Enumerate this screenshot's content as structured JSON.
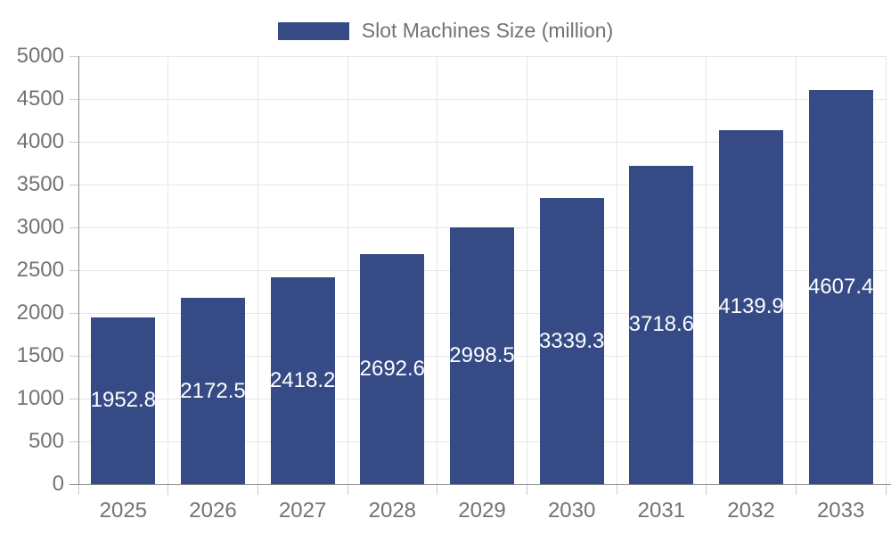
{
  "legend": {
    "label": "Slot Machines Size (million)"
  },
  "chart_data": {
    "type": "bar",
    "title": "Slot Machines Size (million)",
    "series_name": "Slot Machines Size (million)",
    "categories": [
      "2025",
      "2026",
      "2027",
      "2028",
      "2029",
      "2030",
      "2031",
      "2032",
      "2033"
    ],
    "values": [
      1952.8,
      2172.5,
      2418.2,
      2692.6,
      2998.5,
      3339.3,
      3718.6,
      4139.9,
      4607.4
    ],
    "value_labels": [
      "1952.8",
      "2172.5",
      "2418.2",
      "2692.6",
      "2998.5",
      "3339.3",
      "3718.6",
      "4139.9",
      "4607.4"
    ],
    "xlabel": "",
    "ylabel": "",
    "ylim": [
      0,
      5000
    ],
    "ytick_interval": 500,
    "ytick_labels": [
      "0",
      "500",
      "1000",
      "1500",
      "2000",
      "2500",
      "3000",
      "3500",
      "4000",
      "4500",
      "5000"
    ],
    "grid": true,
    "legend_position": "top",
    "value_labels_position": "inside-center",
    "colors": {
      "bar": "#364b85",
      "value_label": "#ffffff",
      "axis_text": "#737373",
      "grid_line": "#e6e6e6",
      "axis_line": "#8a8a8a",
      "tick": "#cccccc",
      "background": "#ffffff"
    }
  }
}
